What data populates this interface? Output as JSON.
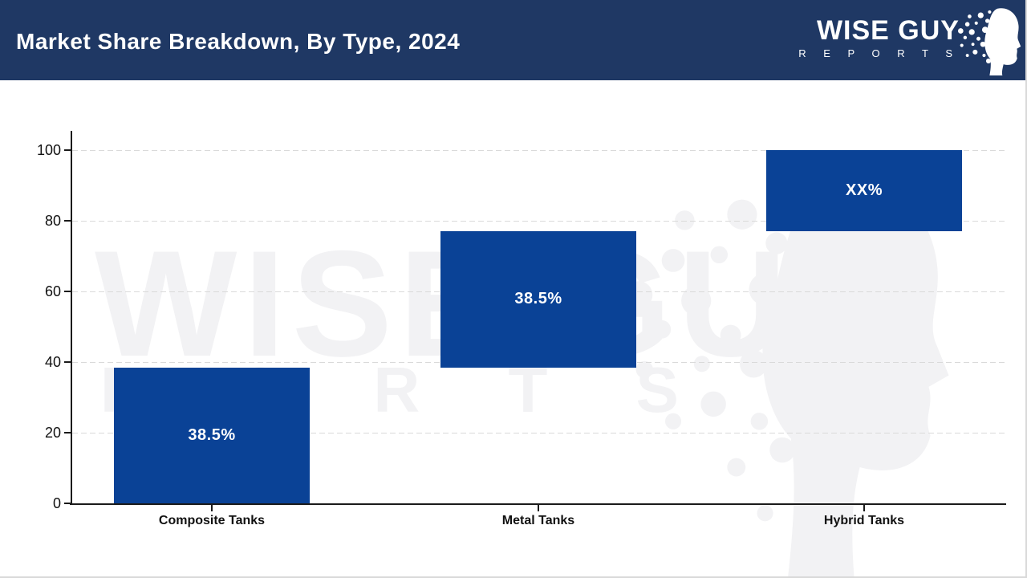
{
  "header": {
    "title": "Market Share Breakdown, By Type, 2024",
    "background_color": "#1f3864",
    "logo": {
      "line1": "WISE GUY",
      "line2": "R E P O R T S",
      "face_icon": "dotted-face-profile"
    }
  },
  "watermark": {
    "line1": "WISE GUY",
    "line2": "R O R T S",
    "color": "#f2f2f4"
  },
  "colors": {
    "bar": "#0a4296",
    "bar_label_text": "#ffffff",
    "axis": "#1a1a1a",
    "gridline": "#dadada",
    "header_bg": "#1f3864",
    "title_text": "#ffffff",
    "tick_text": "#111111"
  },
  "chart_data": {
    "type": "bar",
    "subtype": "waterfall-floating-bars",
    "title": "Market Share Breakdown, By Type, 2024",
    "categories": [
      "Composite Tanks",
      "Metal Tanks",
      "Hybrid Tanks"
    ],
    "series": [
      {
        "name": "Market Share",
        "ranges": [
          [
            0,
            38.5
          ],
          [
            38.5,
            77
          ],
          [
            77,
            100
          ]
        ],
        "values": [
          38.5,
          38.5,
          23
        ],
        "labels": [
          "38.5%",
          "38.5%",
          "XX%"
        ]
      }
    ],
    "xlabel": "",
    "ylabel": "",
    "ylim": [
      0,
      100
    ],
    "yticks": [
      0,
      20,
      40,
      60,
      80,
      100
    ],
    "grid": "horizontal-dashed",
    "legend": "none"
  }
}
